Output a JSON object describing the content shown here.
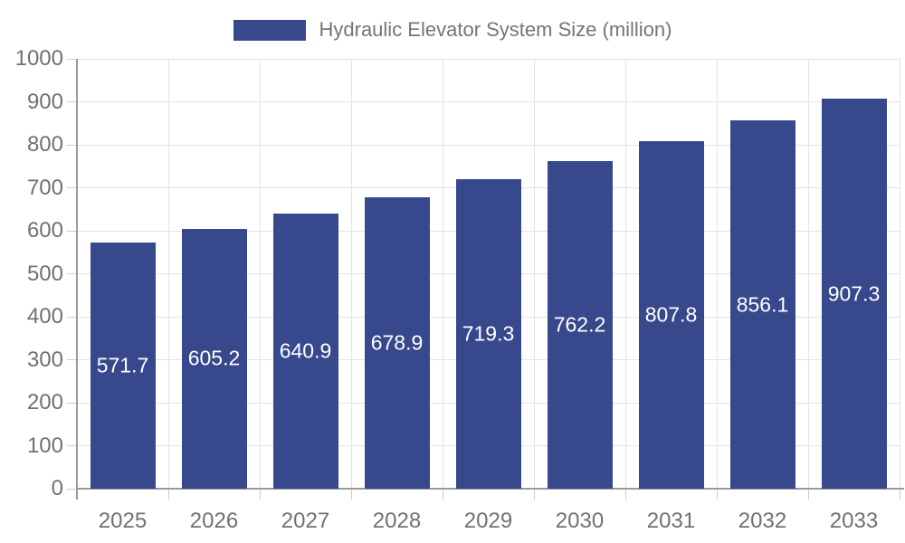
{
  "legend": {
    "label": "Hydraulic Elevator System Size (million)"
  },
  "chart_data": {
    "type": "bar",
    "title": "",
    "series_name": "Hydraulic Elevator System Size (million)",
    "categories": [
      "2025",
      "2026",
      "2027",
      "2028",
      "2029",
      "2030",
      "2031",
      "2032",
      "2033"
    ],
    "values": [
      571.7,
      605.2,
      640.9,
      678.9,
      719.3,
      762.2,
      807.8,
      856.1,
      907.3
    ],
    "ylabel": "",
    "xlabel": "",
    "ylim": [
      0,
      1000
    ],
    "ytick_step": 100,
    "grid": true,
    "legend_position": "top",
    "value_labels": "inside-center",
    "colors": {
      "bar": "#37488c",
      "bar_label_text": "#ffffff",
      "axis_text": "#717171",
      "legend_text": "#757575",
      "gridline": "#e3e3e3",
      "tick": "#cccccc",
      "axis_line": "#9a9a9a"
    }
  }
}
